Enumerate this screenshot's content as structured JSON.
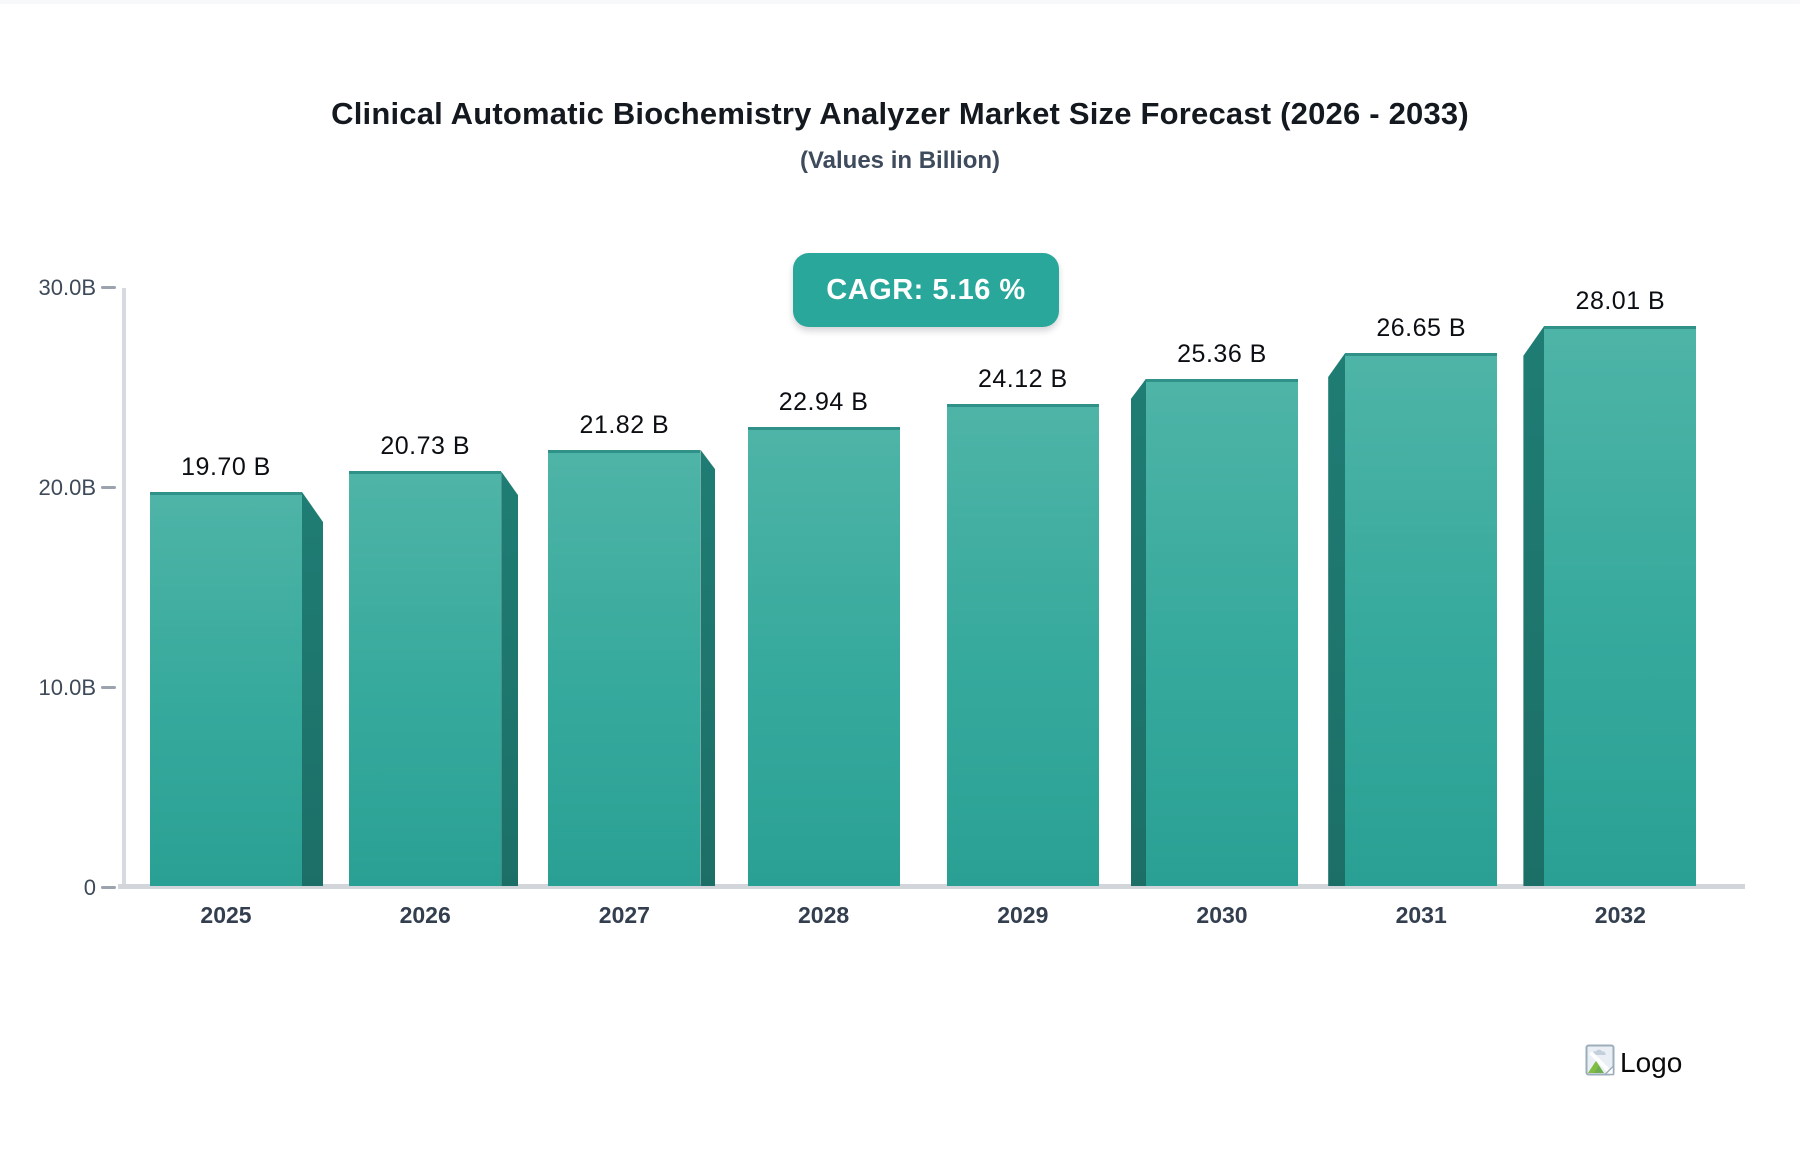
{
  "header": {
    "title": "Clinical Automatic Biochemistry Analyzer Market Size Forecast (2026 - 2033)",
    "subtitle": "(Values in Billion)"
  },
  "badge": {
    "label": "CAGR: 5.16 %",
    "background": "#2aa79b",
    "text_color": "#ffffff"
  },
  "chart_data": {
    "type": "bar",
    "title": "Clinical Automatic Biochemistry Analyzer Market Size Forecast (2026 - 2033)",
    "subtitle": "(Values in Billion)",
    "xlabel": "",
    "ylabel": "",
    "categories": [
      "2025",
      "2026",
      "2027",
      "2028",
      "2029",
      "2030",
      "2031",
      "2032"
    ],
    "values": [
      19.7,
      20.73,
      21.82,
      22.94,
      24.12,
      25.36,
      26.65,
      28.01
    ],
    "value_labels": [
      "19.70 B",
      "20.73 B",
      "21.82 B",
      "22.94 B",
      "24.12 B",
      "25.36 B",
      "26.65 B",
      "28.01 B"
    ],
    "ylim": [
      0,
      30
    ],
    "yticks": [
      {
        "value": 0,
        "label": "0"
      },
      {
        "value": 10,
        "label": "10.0B"
      },
      {
        "value": 20,
        "label": "20.0B"
      },
      {
        "value": 30,
        "label": "30.0B"
      }
    ],
    "grid": false,
    "legend": false,
    "annotation": "CAGR: 5.16 %",
    "colors": {
      "bar_top": "#4eb4a7",
      "bar_mid": "#35a99c",
      "bar_bottom": "#2aa094",
      "bar_side_top": "#1f7d74",
      "bar_side_bottom": "#1c6f67",
      "axis": "#d2d6db",
      "tick": "#9ba3ae"
    }
  },
  "footer": {
    "logo_alt": "Logo"
  }
}
